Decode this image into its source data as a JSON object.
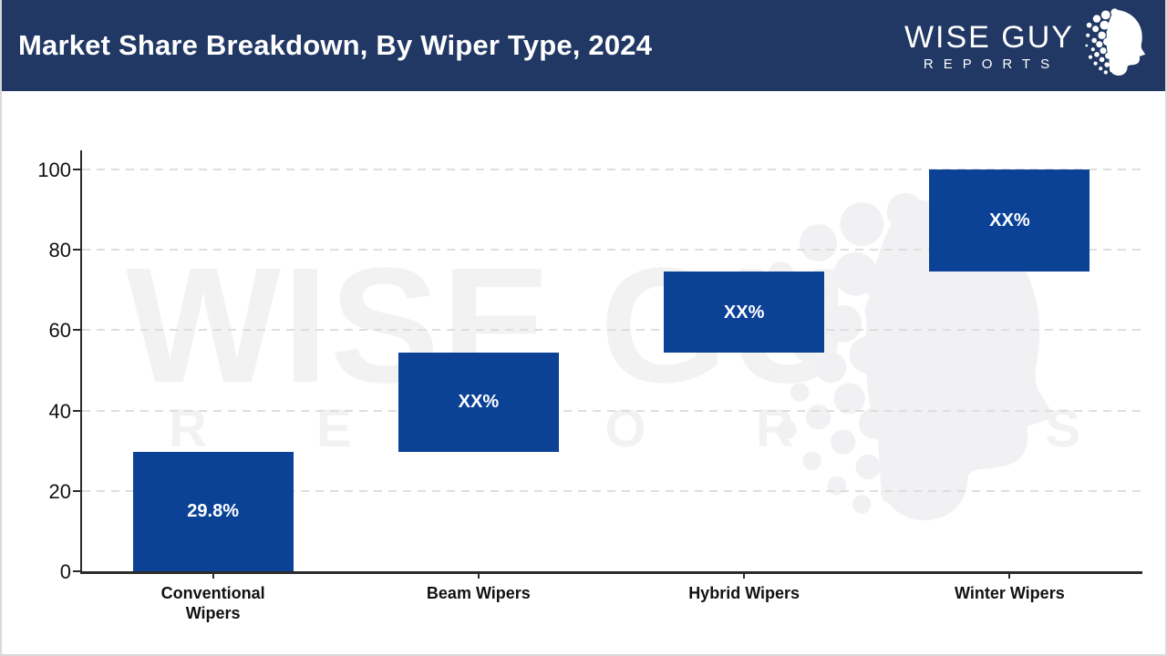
{
  "header": {
    "title": "Market Share Breakdown, By Wiper Type, 2024",
    "logo": {
      "line1": "WISE GUY",
      "line2": "REPORTS"
    }
  },
  "watermark": {
    "line1": "WISE GUY",
    "line2": "R E P O R T S"
  },
  "colors": {
    "header_bg": "#213864",
    "bar": "#0b4296",
    "bar_label": "#ffffff",
    "gridline": "#dedede",
    "axis": "#2b2b2b",
    "watermark": "#f2f2f3"
  },
  "chart_data": {
    "type": "bar",
    "subtype": "waterfall",
    "title": "Market Share Breakdown, By Wiper Type, 2024",
    "xlabel": "",
    "ylabel": "",
    "categories": [
      "Conventional Wipers",
      "Beam Wipers",
      "Hybrid Wipers",
      "Winter Wipers"
    ],
    "segments": [
      {
        "category": "Conventional Wipers",
        "start": 0,
        "end": 29.8,
        "label": "29.8%"
      },
      {
        "category": "Beam Wipers",
        "start": 29.8,
        "end": 54.4,
        "label": "XX%"
      },
      {
        "category": "Hybrid Wipers",
        "start": 54.4,
        "end": 74.6,
        "label": "XX%"
      },
      {
        "category": "Winter Wipers",
        "start": 74.6,
        "end": 100,
        "label": "XX%"
      }
    ],
    "yticks": [
      0,
      20,
      40,
      60,
      80,
      100
    ],
    "ylim": [
      0,
      105
    ],
    "grid": "horizontal-dashed",
    "legend_position": "none"
  }
}
